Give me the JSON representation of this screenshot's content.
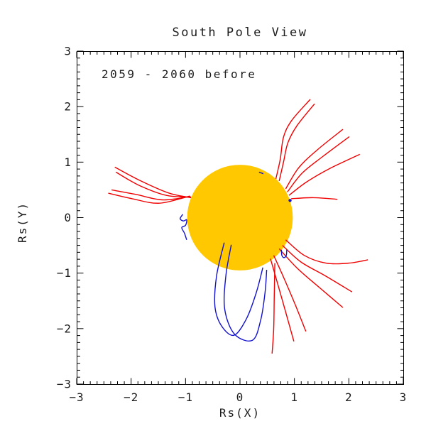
{
  "chart_data": {
    "type": "line",
    "title": "South Pole View",
    "annotation": "2059 - 2060 before",
    "xlabel": "Rs(X)",
    "ylabel": "Rs(Y)",
    "xlim": [
      -3,
      3
    ],
    "ylim": [
      -3,
      3
    ],
    "xticks": [
      -3,
      -2,
      -1,
      0,
      1,
      2,
      3
    ],
    "yticks": [
      -3,
      -2,
      -1,
      0,
      1,
      2,
      3
    ],
    "minor_divisions": 8,
    "grid": false,
    "legend_position": "none",
    "colors": {
      "open_field": "#f00000",
      "closed_field": "#1212cc",
      "sun": "#ffc800",
      "axis": "#000000",
      "text": "#1c1c1c"
    },
    "sun": {
      "x": 0,
      "y": 0,
      "radius": 0.97
    },
    "series": [
      {
        "name": "open-field-up-1",
        "type": "open",
        "points": [
          [
            0.66,
            0.7
          ],
          [
            0.74,
            1.05
          ],
          [
            0.8,
            1.45
          ],
          [
            0.95,
            1.75
          ],
          [
            1.29,
            2.13
          ]
        ]
      },
      {
        "name": "open-field-up-2",
        "type": "open",
        "points": [
          [
            0.72,
            0.66
          ],
          [
            0.8,
            1.0
          ],
          [
            0.88,
            1.35
          ],
          [
            1.05,
            1.66
          ],
          [
            1.37,
            2.05
          ]
        ]
      },
      {
        "name": "open-field-ur-1",
        "type": "open",
        "points": [
          [
            0.84,
            0.52
          ],
          [
            1.08,
            0.9
          ],
          [
            1.42,
            1.22
          ],
          [
            1.89,
            1.59
          ]
        ]
      },
      {
        "name": "open-field-ur-2",
        "type": "open",
        "points": [
          [
            0.87,
            0.46
          ],
          [
            1.14,
            0.8
          ],
          [
            1.52,
            1.1
          ],
          [
            2.01,
            1.46
          ]
        ]
      },
      {
        "name": "open-field-ur-3",
        "type": "open",
        "points": [
          [
            0.9,
            0.4
          ],
          [
            1.22,
            0.64
          ],
          [
            1.64,
            0.88
          ],
          [
            2.2,
            1.14
          ]
        ]
      },
      {
        "name": "open-field-right",
        "type": "open",
        "points": [
          [
            0.94,
            0.34
          ],
          [
            1.35,
            0.36
          ],
          [
            1.79,
            0.33
          ]
        ]
      },
      {
        "name": "open-field-lr-1",
        "type": "open",
        "points": [
          [
            0.84,
            -0.4
          ],
          [
            1.18,
            -0.68
          ],
          [
            1.58,
            -0.82
          ],
          [
            2.0,
            -0.82
          ],
          [
            2.35,
            -0.76
          ]
        ]
      },
      {
        "name": "open-field-lr-2",
        "type": "open",
        "points": [
          [
            0.78,
            -0.5
          ],
          [
            1.12,
            -0.8
          ],
          [
            1.57,
            -1.05
          ],
          [
            2.06,
            -1.34
          ]
        ]
      },
      {
        "name": "open-field-lr-3",
        "type": "open",
        "points": [
          [
            0.72,
            -0.56
          ],
          [
            1.06,
            -0.92
          ],
          [
            1.46,
            -1.26
          ],
          [
            1.89,
            -1.62
          ]
        ]
      },
      {
        "name": "open-field-down-1",
        "type": "open",
        "points": [
          [
            0.62,
            -0.68
          ],
          [
            0.82,
            -1.12
          ],
          [
            1.02,
            -1.58
          ],
          [
            1.21,
            -2.05
          ]
        ]
      },
      {
        "name": "open-field-down-2",
        "type": "open",
        "points": [
          [
            0.56,
            -0.74
          ],
          [
            0.7,
            -1.22
          ],
          [
            0.85,
            -1.74
          ],
          [
            0.99,
            -2.23
          ]
        ]
      },
      {
        "name": "open-field-down-3",
        "type": "open",
        "points": [
          [
            0.64,
            -0.82
          ],
          [
            0.63,
            -1.4
          ],
          [
            0.62,
            -2.0
          ],
          [
            0.59,
            -2.45
          ]
        ]
      },
      {
        "name": "open-field-left-1",
        "type": "open",
        "points": [
          [
            -0.9,
            0.36
          ],
          [
            -1.3,
            0.44
          ],
          [
            -1.82,
            0.66
          ],
          [
            -2.3,
            0.91
          ]
        ]
      },
      {
        "name": "open-field-left-2",
        "type": "open",
        "points": [
          [
            -0.9,
            0.37
          ],
          [
            -1.35,
            0.4
          ],
          [
            -1.85,
            0.58
          ],
          [
            -2.28,
            0.82
          ]
        ]
      },
      {
        "name": "open-field-left-3",
        "type": "open",
        "points": [
          [
            -0.91,
            0.38
          ],
          [
            -1.42,
            0.32
          ],
          [
            -1.92,
            0.42
          ],
          [
            -2.36,
            0.5
          ]
        ]
      },
      {
        "name": "open-field-left-4",
        "type": "open",
        "points": [
          [
            -0.92,
            0.39
          ],
          [
            -1.48,
            0.26
          ],
          [
            -1.98,
            0.34
          ],
          [
            -2.42,
            0.44
          ]
        ]
      },
      {
        "name": "closed-loop-1",
        "type": "closed",
        "points": [
          [
            -0.29,
            -0.45
          ],
          [
            -0.43,
            -1.05
          ],
          [
            -0.46,
            -1.6
          ],
          [
            -0.34,
            -1.95
          ],
          [
            -0.11,
            -2.12
          ],
          [
            0.12,
            -1.82
          ],
          [
            0.3,
            -1.35
          ],
          [
            0.42,
            -0.9
          ]
        ]
      },
      {
        "name": "closed-loop-2",
        "type": "closed",
        "points": [
          [
            -0.16,
            -0.49
          ],
          [
            -0.26,
            -1.05
          ],
          [
            -0.28,
            -1.65
          ],
          [
            -0.1,
            -2.1
          ],
          [
            0.23,
            -2.21
          ],
          [
            0.38,
            -1.85
          ],
          [
            0.46,
            -1.35
          ],
          [
            0.49,
            -0.94
          ]
        ]
      },
      {
        "name": "closed-loop-small",
        "type": "closed",
        "points": [
          [
            0.76,
            -0.58
          ],
          [
            0.77,
            -0.68
          ],
          [
            0.81,
            -0.72
          ],
          [
            0.85,
            -0.68
          ],
          [
            0.86,
            -0.58
          ]
        ]
      },
      {
        "name": "closed-limb-squiggle",
        "type": "closed",
        "points": [
          [
            -1.05,
            0.06
          ],
          [
            -1.1,
            -0.02
          ],
          [
            -1.04,
            -0.06
          ],
          [
            -0.98,
            -0.04
          ],
          [
            -1.0,
            -0.14
          ],
          [
            -1.07,
            -0.18
          ],
          [
            -1.02,
            -0.28
          ],
          [
            -0.98,
            -0.4
          ]
        ]
      },
      {
        "name": "closed-disk-dash",
        "type": "closed",
        "points": [
          [
            0.35,
            0.82
          ],
          [
            0.43,
            0.79
          ]
        ]
      }
    ],
    "markers": [
      {
        "name": "footpoint-dot",
        "x": 0.92,
        "y": 0.31,
        "color": "#1212cc"
      }
    ]
  }
}
